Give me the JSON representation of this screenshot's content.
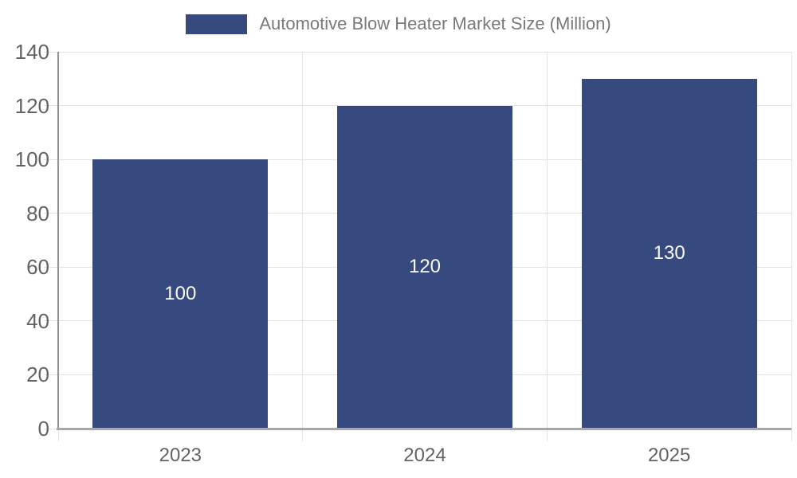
{
  "chart_data": {
    "type": "bar",
    "title": "Automotive Blow Heater Market Size (Million)",
    "categories": [
      "2023",
      "2024",
      "2025"
    ],
    "series": [
      {
        "name": "Automotive Blow Heater Market Size (Million)",
        "values": [
          100,
          120,
          130
        ]
      }
    ],
    "data_labels_shown": true,
    "xlabel": "",
    "ylabel": "",
    "ylim": [
      0,
      140
    ],
    "yticks": [
      0,
      20,
      40,
      60,
      80,
      100,
      120,
      140
    ],
    "grid": true,
    "legend_position": "top-center",
    "colors": {
      "bar": "#374a7f",
      "bar_label": "#fafafa",
      "gridline": "#e2e2e4",
      "y_axis_line": "#8f9094",
      "x_axis_line": "#a7a7ab",
      "tick_label": "#636363",
      "legend_text": "#78797b",
      "background": "#ffffff"
    }
  }
}
